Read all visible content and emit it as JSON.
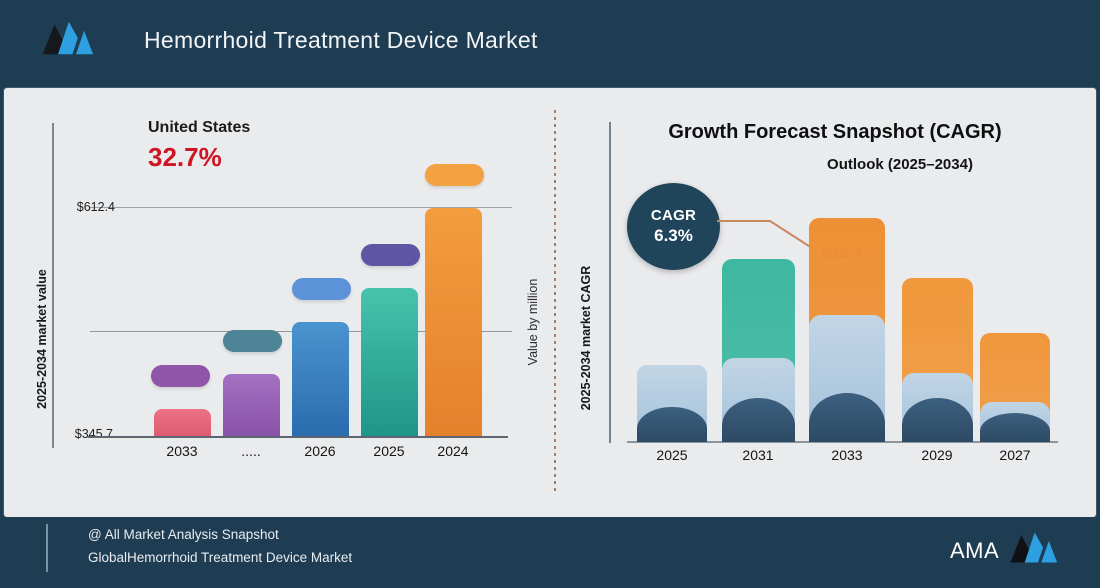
{
  "header": {
    "title": "Hemorrhoid Treatment Device Market",
    "logo": "ama-mountain-logo"
  },
  "footer": {
    "line1": "@ All Market Analysis Snapshot",
    "line2": "GlobalHemorrhoid Treatment Device Market",
    "brand": "AMA",
    "logo": "ama-mountain-logo"
  },
  "colors": {
    "header_bg": "#1e3c52",
    "card_bg": "#eaebed",
    "highlight_red": "#cf1424",
    "badge_navy": "#20445a",
    "connector_tan": "#c8875c",
    "logo_black": "#16181c",
    "logo_blue": "#2e9fe0"
  },
  "chart_data": [
    {
      "type": "bar",
      "panel": "left",
      "title": "United States",
      "highlight": "32.7%",
      "ylabel": "2025-2034 market value",
      "ylabel_right": "Value by million",
      "yticks": {
        "top": "$612.4",
        "bottom": "$345.7"
      },
      "ylim": [
        345.7,
        612.4
      ],
      "grid": "two horizontal gridlines ($612.4 and unlabeled mid), baseline at $345.7",
      "categories": [
        "2033",
        ".....",
        "2026",
        "2025",
        "2024"
      ],
      "values": [
        378,
        419,
        480,
        519,
        612.4
      ],
      "bar_colors": [
        [
          "#ec7287",
          "#dd5a70"
        ],
        [
          "#a471c2",
          "#8852a8"
        ],
        [
          "#4a94cf",
          "#2a6cae"
        ],
        [
          "#46c3ad",
          "#1f9588"
        ],
        [
          "#f29d3e",
          "#e5802c"
        ]
      ],
      "cap_colors": [
        "#8f55a8",
        "#4d8496",
        "#5c92d8",
        "#5e55a5",
        "#f2a240"
      ]
    },
    {
      "type": "stacked-bar",
      "panel": "right",
      "title": "Growth Forecast Snapshot (CAGR)",
      "subtitle": "Outlook (2025–2034)",
      "ylabel": "2025-2034 market CAGR",
      "badge": {
        "label": "CAGR",
        "value": "6.3%"
      },
      "callout_value": "612.4",
      "callout_target": "2033",
      "categories": [
        "2025",
        "2031",
        "2033",
        "2029",
        "2027"
      ],
      "totals": [
        211,
        500,
        612.4,
        448,
        298
      ],
      "series": [
        {
          "name": "base-navy",
          "values": [
            96,
            120,
            134,
            120,
            79
          ]
        },
        {
          "name": "mid-lightblue",
          "values": [
            115,
            109,
            213,
            68,
            30
          ]
        },
        {
          "name": "top-accent",
          "values": [
            0,
            271,
            265,
            260,
            189
          ]
        }
      ],
      "top_colors": [
        "#b9cfe2",
        "#3eb8a1",
        "#ee9035",
        "#f0983b",
        "#f0973c"
      ],
      "legend": "none"
    }
  ]
}
